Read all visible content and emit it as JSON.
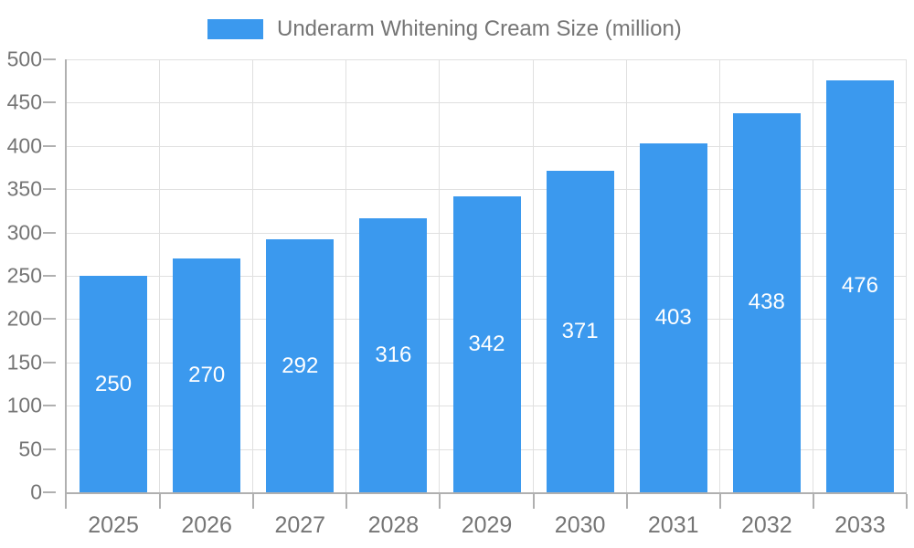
{
  "legend": {
    "label": "Underarm Whitening Cream Size (million)"
  },
  "chart_data": {
    "type": "bar",
    "title": "",
    "xlabel": "",
    "ylabel": "",
    "categories": [
      "2025",
      "2026",
      "2027",
      "2028",
      "2029",
      "2030",
      "2031",
      "2032",
      "2033"
    ],
    "series": [
      {
        "name": "Underarm Whitening Cream Size (million)",
        "values": [
          250,
          270,
          292,
          316,
          342,
          371,
          403,
          438,
          476
        ]
      }
    ],
    "ylim": [
      0,
      500
    ],
    "y_ticks": [
      0,
      50,
      100,
      150,
      200,
      250,
      300,
      350,
      400,
      450,
      500
    ],
    "grid": true,
    "legend_position": "top-center",
    "bar_labels_visible": true
  },
  "colors": {
    "bar": "#3b99ee",
    "grid": "#e0e0e0",
    "axis": "#b0b0b0",
    "axis_label": "#757575",
    "bar_label": "#ffffff",
    "background": "#ffffff"
  }
}
